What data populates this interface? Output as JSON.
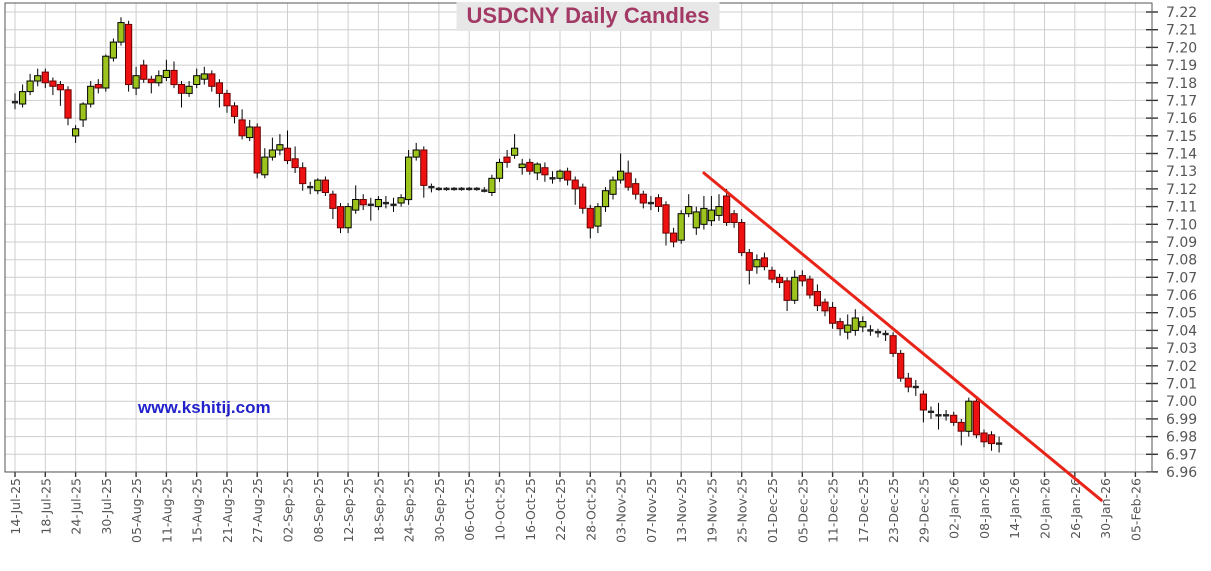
{
  "header": {
    "title": "USDCNY Daily Candles"
  },
  "watermark": {
    "text": "www.kshitij.com"
  },
  "colors": {
    "up_candle": "#9cc41c",
    "down_candle": "#ee1111",
    "flat_candle": "#222222",
    "candle_outline_up": "#000000",
    "candle_outline_down": "#6b0000",
    "wick": "#000000",
    "trendline": "#e82318",
    "grid": "#cfcfcf",
    "frame": "#555555",
    "tick": "#333333",
    "axis_text": "#555555",
    "title_text": "#a33a66",
    "title_bg": "#e7e7e7",
    "watermark_text": "#2121cb",
    "background": "#ffffff"
  },
  "chart_data": {
    "type": "candlestick",
    "title": "USDCNY Daily Candles",
    "symbol": "USDCNY",
    "timeframe": "Daily",
    "legend_position": "none",
    "grid": true,
    "y_axis": {
      "side": "right",
      "min": 6.96,
      "max": 7.22,
      "step": 0.01
    },
    "y_tick_labels": [
      "7.22",
      "7.21",
      "7.20",
      "7.19",
      "7.18",
      "7.17",
      "7.16",
      "7.15",
      "7.14",
      "7.13",
      "7.12",
      "7.11",
      "7.10",
      "7.09",
      "7.08",
      "7.07",
      "7.06",
      "7.05",
      "7.04",
      "7.03",
      "7.02",
      "7.01",
      "7.00",
      "6.99",
      "6.98",
      "6.97",
      "6.96"
    ],
    "x_tick_labels": [
      "14-Jul-25",
      "18-Jul-25",
      "24-Jul-25",
      "30-Jul-25",
      "05-Aug-25",
      "11-Aug-25",
      "15-Aug-25",
      "21-Aug-25",
      "27-Aug-25",
      "02-Sep-25",
      "08-Sep-25",
      "12-Sep-25",
      "18-Sep-25",
      "24-Sep-25",
      "30-Sep-25",
      "06-Oct-25",
      "10-Oct-25",
      "16-Oct-25",
      "22-Oct-25",
      "28-Oct-25",
      "03-Nov-25",
      "07-Nov-25",
      "13-Nov-25",
      "19-Nov-25",
      "25-Nov-25",
      "01-Dec-25",
      "05-Dec-25",
      "11-Dec-25",
      "17-Dec-25",
      "23-Dec-25",
      "29-Dec-25",
      "02-Jan-26",
      "08-Jan-26",
      "14-Jan-26",
      "20-Jan-26",
      "26-Jan-26",
      "30-Jan-26",
      "05-Feb-26"
    ],
    "x_label_step_days": 4,
    "candles_format": [
      "date",
      "open",
      "high",
      "low",
      "close"
    ],
    "candles": [
      [
        "14-Jul-25",
        7.169,
        7.174,
        7.165,
        7.167
      ],
      [
        "15-Jul-25",
        7.168,
        7.179,
        7.166,
        7.175
      ],
      [
        "16-Jul-25",
        7.175,
        7.185,
        7.173,
        7.181
      ],
      [
        "17-Jul-25",
        7.181,
        7.188,
        7.178,
        7.184
      ],
      [
        "18-Jul-25",
        7.186,
        7.188,
        7.177,
        7.18
      ],
      [
        "21-Jul-25",
        7.181,
        7.183,
        7.173,
        7.178
      ],
      [
        "22-Jul-25",
        7.179,
        7.181,
        7.167,
        7.176
      ],
      [
        "23-Jul-25",
        7.176,
        7.178,
        7.156,
        7.16
      ],
      [
        "24-Jul-25",
        7.15,
        7.156,
        7.146,
        7.154
      ],
      [
        "25-Jul-25",
        7.159,
        7.169,
        7.155,
        7.168
      ],
      [
        "28-Jul-25",
        7.168,
        7.181,
        7.166,
        7.178
      ],
      [
        "29-Jul-25",
        7.179,
        7.182,
        7.174,
        7.177
      ],
      [
        "30-Jul-25",
        7.177,
        7.196,
        7.175,
        7.195
      ],
      [
        "31-Jul-25",
        7.194,
        7.205,
        7.192,
        7.203
      ],
      [
        "01-Aug-25",
        7.203,
        7.217,
        7.201,
        7.214
      ],
      [
        "04-Aug-25",
        7.213,
        7.215,
        7.175,
        7.179
      ],
      [
        "05-Aug-25",
        7.177,
        7.189,
        7.173,
        7.184
      ],
      [
        "06-Aug-25",
        7.19,
        7.193,
        7.18,
        7.182
      ],
      [
        "07-Aug-25",
        7.182,
        7.184,
        7.174,
        7.18
      ],
      [
        "08-Aug-25",
        7.18,
        7.187,
        7.178,
        7.184
      ],
      [
        "11-Aug-25",
        7.183,
        7.193,
        7.181,
        7.187
      ],
      [
        "12-Aug-25",
        7.187,
        7.192,
        7.177,
        7.179
      ],
      [
        "13-Aug-25",
        7.179,
        7.181,
        7.166,
        7.174
      ],
      [
        "14-Aug-25",
        7.174,
        7.181,
        7.172,
        7.178
      ],
      [
        "15-Aug-25",
        7.179,
        7.188,
        7.177,
        7.184
      ],
      [
        "18-Aug-25",
        7.182,
        7.189,
        7.179,
        7.185
      ],
      [
        "19-Aug-25",
        7.185,
        7.187,
        7.175,
        7.178
      ],
      [
        "20-Aug-25",
        7.18,
        7.182,
        7.166,
        7.174
      ],
      [
        "21-Aug-25",
        7.174,
        7.176,
        7.163,
        7.167
      ],
      [
        "22-Aug-25",
        7.167,
        7.169,
        7.157,
        7.161
      ],
      [
        "25-Aug-25",
        7.159,
        7.165,
        7.148,
        7.15
      ],
      [
        "26-Aug-25",
        7.149,
        7.159,
        7.147,
        7.155
      ],
      [
        "27-Aug-25",
        7.155,
        7.157,
        7.126,
        7.129
      ],
      [
        "28-Aug-25",
        7.128,
        7.143,
        7.126,
        7.138
      ],
      [
        "29-Aug-25",
        7.138,
        7.149,
        7.136,
        7.142
      ],
      [
        "01-Sep-25",
        7.142,
        7.151,
        7.139,
        7.145
      ],
      [
        "02-Sep-25",
        7.143,
        7.153,
        7.134,
        7.136
      ],
      [
        "03-Sep-25",
        7.137,
        7.144,
        7.129,
        7.132
      ],
      [
        "04-Sep-25",
        7.132,
        7.135,
        7.119,
        7.123
      ],
      [
        "05-Sep-25",
        7.121,
        7.124,
        7.117,
        7.12
      ],
      [
        "08-Sep-25",
        7.119,
        7.126,
        7.117,
        7.125
      ],
      [
        "09-Sep-25",
        7.125,
        7.127,
        7.116,
        7.118
      ],
      [
        "10-Sep-25",
        7.117,
        7.119,
        7.103,
        7.109
      ],
      [
        "11-Sep-25",
        7.11,
        7.112,
        7.095,
        7.098
      ],
      [
        "12-Sep-25",
        7.098,
        7.112,
        7.095,
        7.11
      ],
      [
        "15-Sep-25",
        7.108,
        7.122,
        7.106,
        7.114
      ],
      [
        "16-Sep-25",
        7.114,
        7.117,
        7.108,
        7.111
      ],
      [
        "17-Sep-25",
        7.111,
        7.115,
        7.102,
        7.11
      ],
      [
        "18-Sep-25",
        7.11,
        7.116,
        7.108,
        7.114
      ],
      [
        "19-Sep-25",
        7.112,
        7.116,
        7.109,
        7.111
      ],
      [
        "22-Sep-25",
        7.111,
        7.115,
        7.107,
        7.112
      ],
      [
        "23-Sep-25",
        7.112,
        7.117,
        7.11,
        7.115
      ],
      [
        "24-Sep-25",
        7.114,
        7.142,
        7.111,
        7.138
      ],
      [
        "25-Sep-25",
        7.138,
        7.146,
        7.136,
        7.142
      ],
      [
        "26-Sep-25",
        7.142,
        7.144,
        7.115,
        7.122
      ],
      [
        "29-Sep-25",
        7.121,
        7.123,
        7.118,
        7.12
      ],
      [
        "30-Sep-25",
        7.12,
        7.121,
        7.119,
        7.12
      ],
      [
        "01-Oct-25",
        7.12,
        7.121,
        7.119,
        7.12
      ],
      [
        "02-Oct-25",
        7.12,
        7.121,
        7.119,
        7.12
      ],
      [
        "03-Oct-25",
        7.12,
        7.121,
        7.119,
        7.12
      ],
      [
        "06-Oct-25",
        7.12,
        7.121,
        7.119,
        7.12
      ],
      [
        "07-Oct-25",
        7.12,
        7.121,
        7.119,
        7.12
      ],
      [
        "08-Oct-25",
        7.119,
        7.121,
        7.118,
        7.119
      ],
      [
        "09-Oct-25",
        7.118,
        7.128,
        7.116,
        7.126
      ],
      [
        "10-Oct-25",
        7.126,
        7.137,
        7.124,
        7.135
      ],
      [
        "13-Oct-25",
        7.138,
        7.142,
        7.132,
        7.135
      ],
      [
        "14-Oct-25",
        7.139,
        7.151,
        7.137,
        7.143
      ],
      [
        "15-Oct-25",
        7.132,
        7.137,
        7.128,
        7.134
      ],
      [
        "16-Oct-25",
        7.135,
        7.137,
        7.128,
        7.13
      ],
      [
        "17-Oct-25",
        7.129,
        7.135,
        7.125,
        7.134
      ],
      [
        "20-Oct-25",
        7.132,
        7.135,
        7.124,
        7.128
      ],
      [
        "21-Oct-25",
        7.126,
        7.13,
        7.123,
        7.128
      ],
      [
        "22-Oct-25",
        7.126,
        7.131,
        7.124,
        7.13
      ],
      [
        "23-Oct-25",
        7.13,
        7.132,
        7.122,
        7.125
      ],
      [
        "24-Oct-25",
        7.125,
        7.127,
        7.111,
        7.12
      ],
      [
        "27-Oct-25",
        7.121,
        7.123,
        7.106,
        7.109
      ],
      [
        "28-Oct-25",
        7.109,
        7.111,
        7.092,
        7.098
      ],
      [
        "29-Oct-25",
        7.099,
        7.112,
        7.095,
        7.11
      ],
      [
        "30-Oct-25",
        7.11,
        7.121,
        7.107,
        7.119
      ],
      [
        "31-Oct-25",
        7.117,
        7.127,
        7.114,
        7.125
      ],
      [
        "03-Nov-25",
        7.125,
        7.14,
        7.123,
        7.13
      ],
      [
        "04-Nov-25",
        7.129,
        7.136,
        7.119,
        7.121
      ],
      [
        "05-Nov-25",
        7.123,
        7.126,
        7.114,
        7.117
      ],
      [
        "06-Nov-25",
        7.117,
        7.119,
        7.109,
        7.112
      ],
      [
        "07-Nov-25",
        7.112,
        7.116,
        7.108,
        7.112
      ],
      [
        "10-Nov-25",
        7.115,
        7.117,
        7.107,
        7.11
      ],
      [
        "11-Nov-25",
        7.111,
        7.113,
        7.088,
        7.095
      ],
      [
        "12-Nov-25",
        7.095,
        7.098,
        7.087,
        7.09
      ],
      [
        "13-Nov-25",
        7.091,
        7.108,
        7.089,
        7.106
      ],
      [
        "14-Nov-25",
        7.106,
        7.117,
        7.104,
        7.11
      ],
      [
        "17-Nov-25",
        7.098,
        7.11,
        7.094,
        7.107
      ],
      [
        "18-Nov-25",
        7.1,
        7.116,
        7.097,
        7.109
      ],
      [
        "19-Nov-25",
        7.102,
        7.116,
        7.099,
        7.108
      ],
      [
        "20-Nov-25",
        7.105,
        7.117,
        7.102,
        7.11
      ],
      [
        "21-Nov-25",
        7.116,
        7.12,
        7.099,
        7.101
      ],
      [
        "24-Nov-25",
        7.106,
        7.108,
        7.098,
        7.101
      ],
      [
        "25-Nov-25",
        7.101,
        7.103,
        7.082,
        7.084
      ],
      [
        "26-Nov-25",
        7.084,
        7.086,
        7.066,
        7.074
      ],
      [
        "27-Nov-25",
        7.076,
        7.083,
        7.072,
        7.08
      ],
      [
        "28-Nov-25",
        7.081,
        7.084,
        7.074,
        7.076
      ],
      [
        "01-Dec-25",
        7.074,
        7.076,
        7.067,
        7.069
      ],
      [
        "02-Dec-25",
        7.07,
        7.072,
        7.064,
        7.067
      ],
      [
        "03-Dec-25",
        7.068,
        7.07,
        7.051,
        7.057
      ],
      [
        "04-Dec-25",
        7.057,
        7.074,
        7.055,
        7.07
      ],
      [
        "05-Dec-25",
        7.071,
        7.074,
        7.065,
        7.068
      ],
      [
        "08-Dec-25",
        7.069,
        7.071,
        7.058,
        7.06
      ],
      [
        "09-Dec-25",
        7.062,
        7.066,
        7.051,
        7.054
      ],
      [
        "10-Dec-25",
        7.056,
        7.058,
        7.048,
        7.051
      ],
      [
        "11-Dec-25",
        7.053,
        7.056,
        7.041,
        7.044
      ],
      [
        "12-Dec-25",
        7.045,
        7.047,
        7.037,
        7.041
      ],
      [
        "15-Dec-25",
        7.039,
        7.049,
        7.035,
        7.043
      ],
      [
        "16-Dec-25",
        7.04,
        7.052,
        7.037,
        7.047
      ],
      [
        "17-Dec-25",
        7.042,
        7.048,
        7.039,
        7.045
      ],
      [
        "18-Dec-25",
        7.04,
        7.043,
        7.037,
        7.039
      ],
      [
        "19-Dec-25",
        7.039,
        7.041,
        7.036,
        7.038
      ],
      [
        "22-Dec-25",
        7.038,
        7.04,
        7.034,
        7.037
      ],
      [
        "23-Dec-25",
        7.037,
        7.039,
        7.025,
        7.027
      ],
      [
        "24-Dec-25",
        7.027,
        7.029,
        7.011,
        7.013
      ],
      [
        "25-Dec-25",
        7.013,
        7.016,
        7.005,
        7.008
      ],
      [
        "26-Dec-25",
        7.008,
        7.012,
        7.003,
        7.009
      ],
      [
        "29-Dec-25",
        7.004,
        7.006,
        6.988,
        6.995
      ],
      [
        "30-Dec-25",
        6.994,
        6.997,
        6.99,
        6.992
      ],
      [
        "31-Dec-25",
        6.992,
        6.999,
        6.984,
        6.993
      ],
      [
        "01-Jan-26",
        6.992,
        6.995,
        6.989,
        6.992
      ],
      [
        "02-Jan-26",
        6.992,
        6.994,
        6.986,
        6.988
      ],
      [
        "05-Jan-26",
        6.988,
        6.99,
        6.975,
        6.983
      ],
      [
        "06-Jan-26",
        6.983,
        7.002,
        6.98,
        7.0
      ],
      [
        "07-Jan-26",
        7.0,
        7.002,
        6.979,
        6.981
      ],
      [
        "08-Jan-26",
        6.982,
        6.984,
        6.974,
        6.977
      ],
      [
        "09-Jan-26",
        6.981,
        6.983,
        6.972,
        6.976
      ],
      [
        "12-Jan-26",
        6.976,
        6.98,
        6.971,
        6.975
      ]
    ],
    "trendline": {
      "from": {
        "day_index": 91,
        "price": 7.129
      },
      "to": {
        "day_index": 143.5,
        "price": 6.944
      },
      "style": "falling resistance line"
    }
  }
}
